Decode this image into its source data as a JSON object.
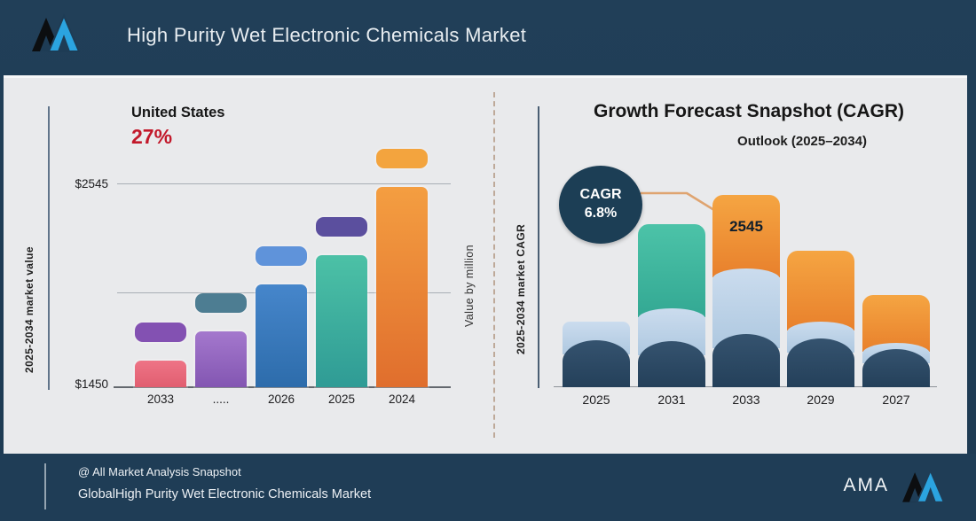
{
  "header": {
    "title": "High Purity Wet Electronic Chemicals Market",
    "brand": "AMA"
  },
  "footer": {
    "credit": "@ All Market Analysis Snapshot",
    "caption": "GlobalHigh Purity Wet Electronic Chemicals Market",
    "brand": "AMA"
  },
  "palette": {
    "frame_navy": "#1e3c55",
    "panel_gray": "#e9eaec",
    "accent_red": "#c2182a",
    "connector_tan": "#dfa470",
    "badge_navy": "#1c3e55"
  },
  "chart_data": [
    {
      "type": "bar",
      "title": "United States",
      "highlight_value": "27%",
      "categories": [
        "2033",
        ".....",
        "2026",
        "2025",
        "2024"
      ],
      "values": [
        1595,
        1750,
        2000,
        2160,
        2525
      ],
      "y_axis": {
        "top": "$2545",
        "top_value": 2545,
        "bottom": "$1450",
        "bottom_value": 1450
      },
      "ylabel_left": "2025-2034 market value",
      "ylabel_right": "Value by million",
      "grid": true,
      "legend": "none",
      "bar_gradients": [
        [
          "#ee7486",
          "#e15e70"
        ],
        [
          "#a478cd",
          "#8356b2"
        ],
        [
          "#4686cb",
          "#2d6cab"
        ],
        [
          "#4cc1a6",
          "#2f9b95"
        ],
        [
          "#f49e41",
          "#e06e2d"
        ]
      ],
      "cap_colors": [
        "#8351b2",
        "#4d7d92",
        "#5f93da",
        "#5b4f9e",
        "#f3a43e"
      ]
    },
    {
      "type": "bar",
      "stacked": true,
      "title": "Growth Forecast Snapshot (CAGR)",
      "subtitle": "Outlook (2025–2034)",
      "badge": {
        "label": "CAGR",
        "value": "6.8%"
      },
      "annotation": {
        "text": "2545",
        "category": "2033"
      },
      "categories": [
        "2025",
        "2031",
        "2033",
        "2029",
        "2027"
      ],
      "unit": "relative segment height (axis unlabeled)",
      "series": [
        {
          "name": "base",
          "values": [
            37,
            36,
            44,
            39,
            27
          ]
        },
        {
          "name": "middle",
          "values": [
            37,
            43,
            80,
            25,
            13
          ]
        },
        {
          "name": "top",
          "values": [
            0,
            105,
            93,
            90,
            64
          ]
        }
      ],
      "base_gradient": [
        "#35536f",
        "#24405a"
      ],
      "middle_gradient": [
        "#cbdcee",
        "#aec8e0"
      ],
      "top_gradients": [
        null,
        [
          "#4cc3a8",
          "#33a893"
        ],
        [
          "#f5a542",
          "#e8802c"
        ],
        [
          "#f5a542",
          "#e8802c"
        ],
        [
          "#f5a542",
          "#e8802c"
        ]
      ],
      "ylabel_left": "2025-2034 market CAGR",
      "legend": "none"
    }
  ]
}
